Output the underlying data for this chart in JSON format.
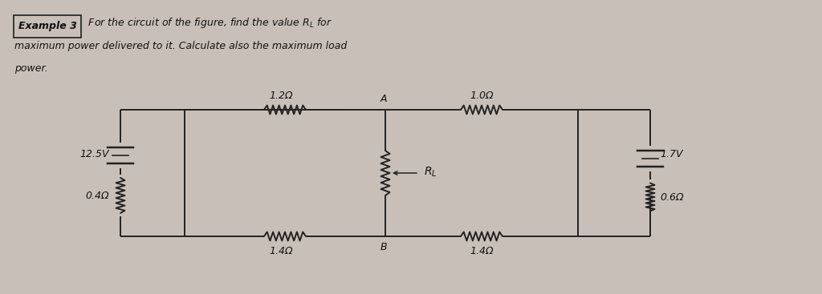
{
  "bg_color": "#c8c0b8",
  "page_color": "#dbd5ce",
  "text_color": "#111111",
  "circuit_line_color": "#222222",
  "title_box_text": "Example 3",
  "line1_text": " For the circuit of the figure, find the value $R_L$ for",
  "line2_text": "maximum power delivered to it. Calculate also the maximum load",
  "line3_text": "power.",
  "R_top_left": "1.2Ω",
  "R_top_right": "1.0Ω",
  "R_bot_left": "1.4Ω",
  "R_bot_right": "1.4Ω",
  "R_L_label": "R",
  "R_L_sub": "L",
  "R_left_sr": "0.4Ω",
  "R_right_sr": "0.6Ω",
  "V_left": "12.5V",
  "V_right": "1.7V",
  "node_A": "A",
  "node_B": "B",
  "lw": 1.4,
  "fs_circuit": 9,
  "fs_title": 9
}
